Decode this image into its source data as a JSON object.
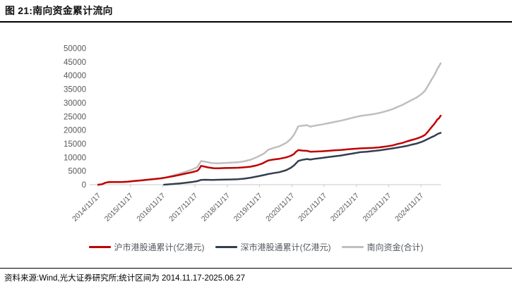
{
  "header": {
    "title": "图 21:南向资金累计流向"
  },
  "footer": {
    "text": "资料来源:Wind,光大证券研究所;统计区间为 2014.11.17-2025.06.27"
  },
  "chart_data": {
    "type": "line",
    "title": "南向资金累计流向",
    "ylabel": "",
    "xlabel": "",
    "ylim": [
      0,
      50000
    ],
    "y_ticks": [
      0,
      5000,
      10000,
      15000,
      20000,
      25000,
      30000,
      35000,
      40000,
      45000,
      50000
    ],
    "x_tick_labels": [
      "2014/11/17",
      "2015/11/17",
      "2016/11/17",
      "2017/11/17",
      "2018/11/17",
      "2019/11/17",
      "2020/11/17",
      "2021/11/17",
      "2022/11/17",
      "2023/11/17",
      "2024/11/17"
    ],
    "x_tick_positions": [
      2014.88,
      2015.88,
      2016.88,
      2017.88,
      2018.88,
      2019.88,
      2020.88,
      2021.88,
      2022.88,
      2023.88,
      2024.88
    ],
    "x_range": [
      2014.88,
      2025.5
    ],
    "grid": false,
    "legend_position": "bottom",
    "axis_color": "#c9c9c9",
    "tick_label_color": "#595959",
    "series": [
      {
        "key": "shanghai",
        "name": "沪市港股通累计(亿港元)",
        "color": "#C00000",
        "points": [
          [
            2014.88,
            0
          ],
          [
            2014.95,
            60
          ],
          [
            2015.02,
            250
          ],
          [
            2015.1,
            700
          ],
          [
            2015.2,
            930
          ],
          [
            2015.35,
            950
          ],
          [
            2015.5,
            960
          ],
          [
            2015.65,
            1020
          ],
          [
            2015.8,
            1120
          ],
          [
            2016.0,
            1350
          ],
          [
            2016.2,
            1550
          ],
          [
            2016.4,
            1800
          ],
          [
            2016.6,
            2050
          ],
          [
            2016.8,
            2300
          ],
          [
            2016.92,
            2500
          ],
          [
            2017.0,
            2650
          ],
          [
            2017.2,
            3100
          ],
          [
            2017.4,
            3600
          ],
          [
            2017.6,
            4100
          ],
          [
            2017.8,
            4600
          ],
          [
            2017.95,
            5100
          ],
          [
            2018.0,
            5600
          ],
          [
            2018.07,
            6900
          ],
          [
            2018.15,
            6700
          ],
          [
            2018.3,
            6300
          ],
          [
            2018.45,
            6050
          ],
          [
            2018.6,
            6000
          ],
          [
            2018.8,
            6100
          ],
          [
            2019.0,
            6150
          ],
          [
            2019.2,
            6200
          ],
          [
            2019.4,
            6350
          ],
          [
            2019.6,
            6600
          ],
          [
            2019.8,
            7100
          ],
          [
            2019.95,
            7700
          ],
          [
            2020.05,
            8300
          ],
          [
            2020.15,
            8900
          ],
          [
            2020.3,
            9200
          ],
          [
            2020.5,
            9500
          ],
          [
            2020.7,
            10000
          ],
          [
            2020.85,
            10600
          ],
          [
            2020.95,
            11300
          ],
          [
            2021.0,
            12000
          ],
          [
            2021.08,
            12700
          ],
          [
            2021.2,
            12500
          ],
          [
            2021.35,
            12400
          ],
          [
            2021.45,
            12100
          ],
          [
            2021.6,
            12150
          ],
          [
            2021.8,
            12250
          ],
          [
            2022.0,
            12400
          ],
          [
            2022.2,
            12600
          ],
          [
            2022.4,
            12750
          ],
          [
            2022.6,
            12950
          ],
          [
            2022.8,
            13150
          ],
          [
            2023.0,
            13300
          ],
          [
            2023.2,
            13400
          ],
          [
            2023.4,
            13500
          ],
          [
            2023.6,
            13700
          ],
          [
            2023.8,
            14000
          ],
          [
            2024.0,
            14400
          ],
          [
            2024.15,
            14900
          ],
          [
            2024.3,
            15300
          ],
          [
            2024.45,
            15900
          ],
          [
            2024.6,
            16400
          ],
          [
            2024.75,
            16900
          ],
          [
            2024.88,
            17500
          ],
          [
            2025.0,
            18200
          ],
          [
            2025.1,
            19500
          ],
          [
            2025.2,
            21000
          ],
          [
            2025.3,
            22400
          ],
          [
            2025.38,
            23800
          ],
          [
            2025.44,
            24400
          ],
          [
            2025.49,
            25300
          ]
        ]
      },
      {
        "key": "shenzhen",
        "name": "深市港股通累计(亿港元)",
        "color": "#333F50",
        "points": [
          [
            2016.92,
            0
          ],
          [
            2017.0,
            80
          ],
          [
            2017.2,
            250
          ],
          [
            2017.4,
            450
          ],
          [
            2017.6,
            700
          ],
          [
            2017.8,
            1000
          ],
          [
            2017.95,
            1300
          ],
          [
            2018.07,
            1750
          ],
          [
            2018.2,
            1800
          ],
          [
            2018.4,
            1750
          ],
          [
            2018.6,
            1800
          ],
          [
            2018.8,
            1850
          ],
          [
            2019.0,
            1900
          ],
          [
            2019.2,
            2000
          ],
          [
            2019.4,
            2200
          ],
          [
            2019.6,
            2550
          ],
          [
            2019.8,
            3000
          ],
          [
            2020.0,
            3500
          ],
          [
            2020.15,
            3900
          ],
          [
            2020.3,
            4200
          ],
          [
            2020.5,
            4600
          ],
          [
            2020.7,
            5300
          ],
          [
            2020.85,
            6200
          ],
          [
            2020.95,
            7100
          ],
          [
            2021.08,
            8700
          ],
          [
            2021.2,
            9100
          ],
          [
            2021.35,
            9400
          ],
          [
            2021.45,
            9200
          ],
          [
            2021.6,
            9500
          ],
          [
            2021.8,
            9800
          ],
          [
            2022.0,
            10100
          ],
          [
            2022.2,
            10400
          ],
          [
            2022.4,
            10700
          ],
          [
            2022.6,
            11100
          ],
          [
            2022.8,
            11500
          ],
          [
            2023.0,
            11900
          ],
          [
            2023.2,
            12100
          ],
          [
            2023.4,
            12350
          ],
          [
            2023.6,
            12600
          ],
          [
            2023.8,
            12950
          ],
          [
            2024.0,
            13300
          ],
          [
            2024.15,
            13600
          ],
          [
            2024.3,
            13900
          ],
          [
            2024.45,
            14250
          ],
          [
            2024.6,
            14700
          ],
          [
            2024.75,
            15100
          ],
          [
            2024.88,
            15600
          ],
          [
            2025.0,
            16200
          ],
          [
            2025.1,
            16800
          ],
          [
            2025.2,
            17400
          ],
          [
            2025.3,
            17900
          ],
          [
            2025.38,
            18500
          ],
          [
            2025.44,
            18800
          ],
          [
            2025.49,
            19000
          ]
        ]
      },
      {
        "key": "total",
        "name": "南向资金(合计)",
        "color": "#BFBFBF",
        "points": [
          [
            2014.88,
            0
          ],
          [
            2014.95,
            60
          ],
          [
            2015.02,
            250
          ],
          [
            2015.1,
            700
          ],
          [
            2015.2,
            930
          ],
          [
            2015.35,
            950
          ],
          [
            2015.5,
            960
          ],
          [
            2015.65,
            1020
          ],
          [
            2015.8,
            1120
          ],
          [
            2016.0,
            1350
          ],
          [
            2016.2,
            1550
          ],
          [
            2016.4,
            1800
          ],
          [
            2016.6,
            2050
          ],
          [
            2016.8,
            2300
          ],
          [
            2016.92,
            2500
          ],
          [
            2017.0,
            2730
          ],
          [
            2017.2,
            3350
          ],
          [
            2017.4,
            4050
          ],
          [
            2017.6,
            4800
          ],
          [
            2017.8,
            5600
          ],
          [
            2017.95,
            6400
          ],
          [
            2018.07,
            8650
          ],
          [
            2018.2,
            8400
          ],
          [
            2018.4,
            7900
          ],
          [
            2018.6,
            7800
          ],
          [
            2018.8,
            7950
          ],
          [
            2019.0,
            8050
          ],
          [
            2019.2,
            8200
          ],
          [
            2019.4,
            8550
          ],
          [
            2019.6,
            9150
          ],
          [
            2019.8,
            10100
          ],
          [
            2020.0,
            11300
          ],
          [
            2020.15,
            12800
          ],
          [
            2020.3,
            13400
          ],
          [
            2020.5,
            14100
          ],
          [
            2020.7,
            15300
          ],
          [
            2020.85,
            16800
          ],
          [
            2020.95,
            18400
          ],
          [
            2021.08,
            21400
          ],
          [
            2021.2,
            21600
          ],
          [
            2021.35,
            21800
          ],
          [
            2021.45,
            21300
          ],
          [
            2021.6,
            21650
          ],
          [
            2021.8,
            22050
          ],
          [
            2022.0,
            22500
          ],
          [
            2022.2,
            23000
          ],
          [
            2022.4,
            23450
          ],
          [
            2022.6,
            24050
          ],
          [
            2022.8,
            24650
          ],
          [
            2023.0,
            25200
          ],
          [
            2023.2,
            25500
          ],
          [
            2023.4,
            25850
          ],
          [
            2023.6,
            26300
          ],
          [
            2023.8,
            26950
          ],
          [
            2024.0,
            27700
          ],
          [
            2024.15,
            28500
          ],
          [
            2024.3,
            29200
          ],
          [
            2024.45,
            30150
          ],
          [
            2024.6,
            31100
          ],
          [
            2024.75,
            32000
          ],
          [
            2024.88,
            33100
          ],
          [
            2025.0,
            34400
          ],
          [
            2025.1,
            36300
          ],
          [
            2025.2,
            38400
          ],
          [
            2025.3,
            40300
          ],
          [
            2025.38,
            42300
          ],
          [
            2025.44,
            43500
          ],
          [
            2025.49,
            44500
          ]
        ]
      }
    ]
  }
}
